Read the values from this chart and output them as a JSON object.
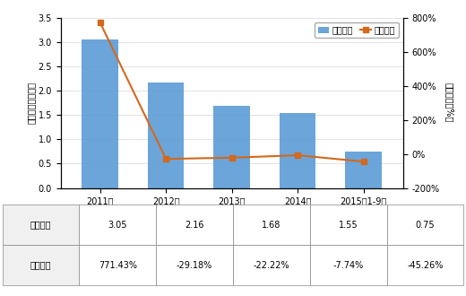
{
  "categories": [
    "2011年",
    "2012年",
    "2013年",
    "2014年",
    "2015年1-9月"
  ],
  "bar_values": [
    3.05,
    2.16,
    1.68,
    1.55,
    0.75
  ],
  "line_values": [
    771.43,
    -29.18,
    -22.22,
    -7.74,
    -45.26
  ],
  "bar_color": "#5B9BD5",
  "line_color": "#D2691E",
  "bar_label": "进口数量",
  "line_label": "同比增长",
  "ylabel_left": "进口数量（万吨）",
  "ylabel_right": "同比增速（%）",
  "ylim_left": [
    0,
    3.5
  ],
  "ylim_right": [
    -200,
    800
  ],
  "yticks_left": [
    0.0,
    0.5,
    1.0,
    1.5,
    2.0,
    2.5,
    3.0,
    3.5
  ],
  "yticks_right": [
    -200,
    0,
    200,
    400,
    600,
    800
  ],
  "ytick_right_labels": [
    "-200%",
    "0%",
    "200%",
    "400%",
    "600%",
    "800%"
  ],
  "table_row1_label": "进口数量",
  "table_row2_label": "同比增长",
  "table_row1_values": [
    "3.05",
    "2.16",
    "1.68",
    "1.55",
    "0.75"
  ],
  "table_row2_values": [
    "771.43%",
    "-29.18%",
    "-22.22%",
    "-7.74%",
    "-45.26%"
  ],
  "bg_color": "#FFFFFF",
  "grid_color": "#DDDDDD",
  "table_header_bg": "#F0F0F0",
  "line_marker": "s"
}
